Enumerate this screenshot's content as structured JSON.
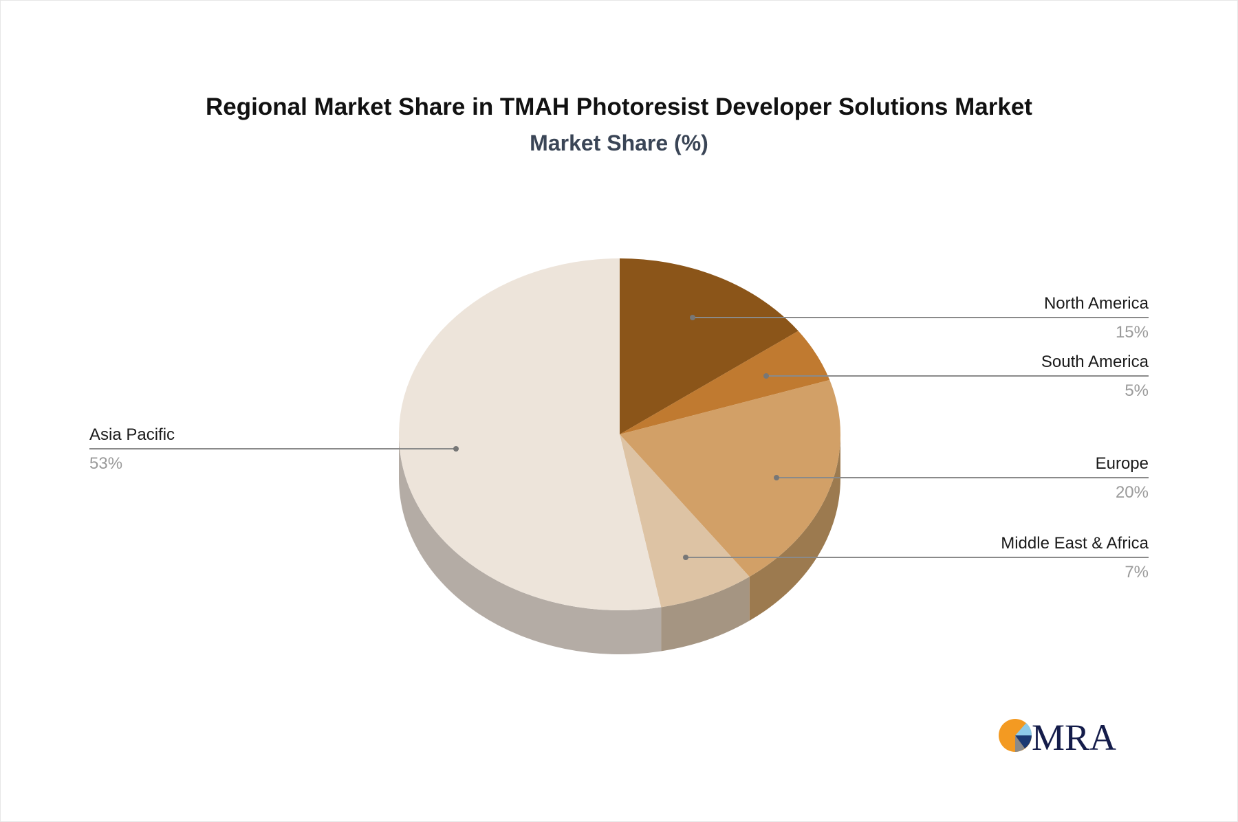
{
  "title": "Regional Market Share in TMAH Photoresist Developer Solutions Market",
  "subtitle": "Market Share (%)",
  "chart_data": {
    "type": "pie",
    "title": "Regional Market Share in TMAH Photoresist Developer Solutions Market",
    "subtitle": "Market Share (%)",
    "style": "3d-pie",
    "categories": [
      "North America",
      "South America",
      "Europe",
      "Middle East & Africa",
      "Asia Pacific"
    ],
    "values": [
      15,
      5,
      20,
      7,
      53
    ],
    "unit": "%",
    "colors": [
      "#8b5519",
      "#c07a30",
      "#d2a067",
      "#ddc3a4",
      "#ede4da"
    ],
    "side_colors": [
      "#6e4a22",
      "#8f6437",
      "#9c7a4f",
      "#a59582",
      "#b4aca5"
    ],
    "legend": "callout labels"
  },
  "labels": [
    {
      "name": "North America",
      "value": "15%"
    },
    {
      "name": "South America",
      "value": "5%"
    },
    {
      "name": "Europe",
      "value": "20%"
    },
    {
      "name": "Middle East & Africa",
      "value": "7%"
    },
    {
      "name": "Asia Pacific",
      "value": "53%"
    }
  ],
  "logo": {
    "text": "MRA",
    "colors": {
      "orange": "#f39a22",
      "light_blue": "#8ecbea",
      "navy": "#1b3a73",
      "gray": "#8a8a8a",
      "text": "#141c4a"
    }
  }
}
